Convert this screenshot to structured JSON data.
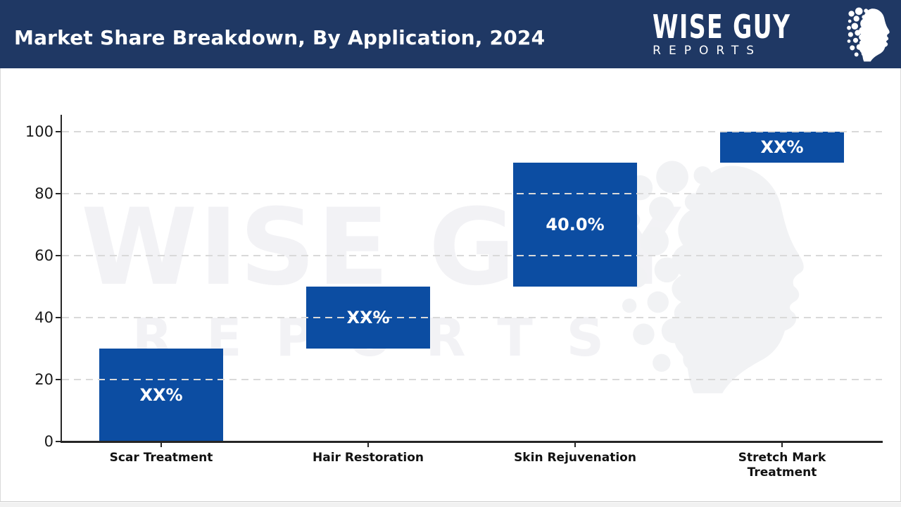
{
  "header": {
    "title": "Market Share Breakdown, By Application, 2024",
    "logo": {
      "line1": "WISE GUY",
      "line2": "REPORTS"
    }
  },
  "watermark": {
    "line1": "WISE GUY",
    "line2": "REPORTS"
  },
  "chart_data": {
    "type": "bar",
    "subtype": "floating-range-bars",
    "title": "Market Share Breakdown, By Application, 2024",
    "categories": [
      "Scar Treatment",
      "Hair Restoration",
      "Skin Rejuvenation",
      "Stretch Mark Treatment"
    ],
    "series": [
      {
        "name": "Market Share (%)",
        "ranges": [
          [
            0,
            30
          ],
          [
            30,
            50
          ],
          [
            50,
            90
          ],
          [
            90,
            100
          ]
        ],
        "labels": [
          "XX%",
          "XX%",
          "40.0%",
          "XX%"
        ]
      }
    ],
    "xlabel": "",
    "ylabel": "",
    "ylim": [
      0,
      105
    ],
    "yticks": [
      0,
      20,
      40,
      60,
      80,
      100
    ],
    "grid": "horizontal-dashed",
    "legend": "none",
    "bar_color": "#0C4DA2",
    "bar_label_color": "#FFFFFF",
    "axis_color": "#262626",
    "grid_color": "#D9D9D9",
    "header_bg": "#1F3864",
    "watermark_color": "#F1F2F4"
  }
}
